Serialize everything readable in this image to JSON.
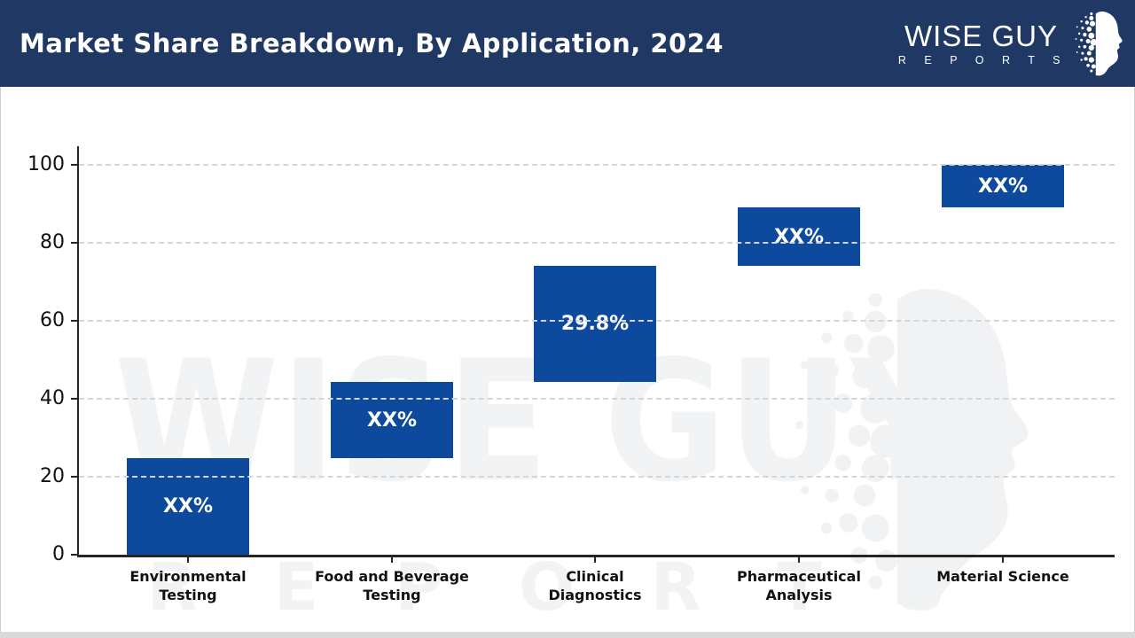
{
  "header": {
    "title": "Market Share Breakdown, By Application, 2024",
    "bg_color": "#1f3864",
    "logo": {
      "wordmark": "WISE GUY",
      "subtext": "R E P O R T S"
    }
  },
  "watermark": {
    "line1": "WISE GUY",
    "line2": "R E P O R T S"
  },
  "chart_data": {
    "type": "bar",
    "variant": "waterfall",
    "title": "Market Share Breakdown, By Application, 2024",
    "categories": [
      "Environmental Testing",
      "Food and Beverage Testing",
      "Clinical Diagnostics",
      "Pharmaceutical Analysis",
      "Material Science"
    ],
    "category_label_lines": [
      [
        "Environmental",
        "Testing"
      ],
      [
        "Food and Beverage",
        "Testing"
      ],
      [
        "Clinical",
        "Diagnostics"
      ],
      [
        "Pharmaceutical",
        "Analysis"
      ],
      [
        "Material Science"
      ]
    ],
    "segments": [
      {
        "category": "Environmental Testing",
        "start": 0,
        "end": 24.8,
        "value": 24.8,
        "label": "XX%"
      },
      {
        "category": "Food and Beverage Testing",
        "start": 24.8,
        "end": 44.3,
        "value": 19.5,
        "label": "XX%"
      },
      {
        "category": "Clinical Diagnostics",
        "start": 44.3,
        "end": 74.1,
        "value": 29.8,
        "label": "29.8%"
      },
      {
        "category": "Pharmaceutical Analysis",
        "start": 74.1,
        "end": 89.0,
        "value": 14.9,
        "label": "XX%"
      },
      {
        "category": "Material Science",
        "start": 89.0,
        "end": 100,
        "value": 11.0,
        "label": "XX%"
      }
    ],
    "xlabel": "",
    "ylabel": "",
    "yticks": [
      0,
      20,
      40,
      60,
      80,
      100
    ],
    "ylim": [
      0,
      104.5
    ],
    "grid": "dashed-horizontal",
    "legend": false,
    "bar_color": "#0d4a9e",
    "bar_label_color": "#ffffff",
    "axis_color": "#262626",
    "grid_color": "#d4d7da"
  },
  "footer": {
    "strip_color": "#d9d9d9"
  }
}
